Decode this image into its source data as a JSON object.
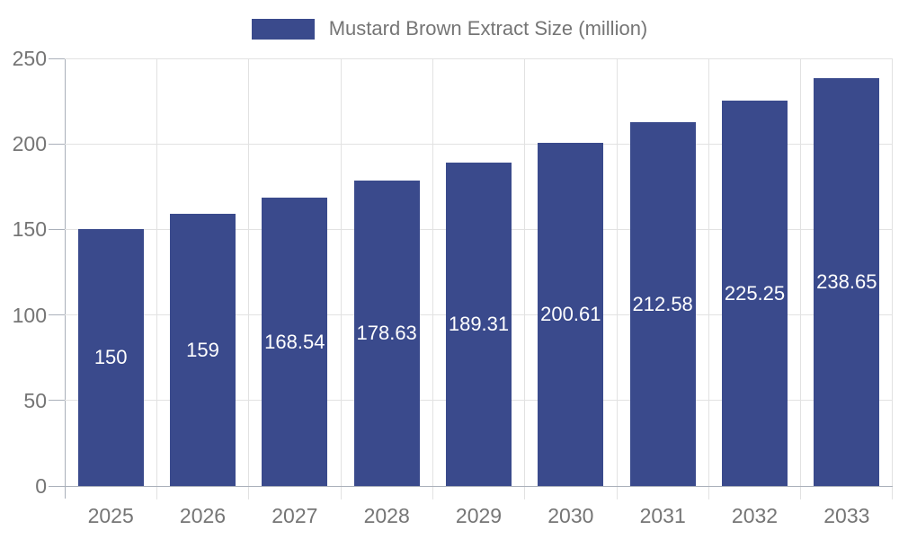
{
  "legend": {
    "label": "Mustard Brown Extract Size (million)"
  },
  "colors": {
    "bar": "#3a4a8c",
    "grid": "#e2e2e2",
    "axis_line": "#aab0ba",
    "tick_text": "#757575",
    "value_text": "#ffffff"
  },
  "chart_data": {
    "type": "bar",
    "categories": [
      "2025",
      "2026",
      "2027",
      "2028",
      "2029",
      "2030",
      "2031",
      "2032",
      "2033"
    ],
    "values": [
      150,
      159,
      168.54,
      178.63,
      189.31,
      200.61,
      212.58,
      225.25,
      238.65
    ],
    "value_labels": [
      "150",
      "159",
      "168.54",
      "178.63",
      "189.31",
      "200.61",
      "212.58",
      "225.25",
      "238.65"
    ],
    "title": "",
    "legend": "Mustard Brown Extract Size (million)",
    "xlabel": "",
    "ylabel": "",
    "ylim": [
      0,
      250
    ],
    "yticks": [
      0,
      50,
      100,
      150,
      200,
      250
    ],
    "grid": true,
    "legend_position": "top",
    "bar_color": "#3a4a8c",
    "value_label_position": "center-inside"
  }
}
